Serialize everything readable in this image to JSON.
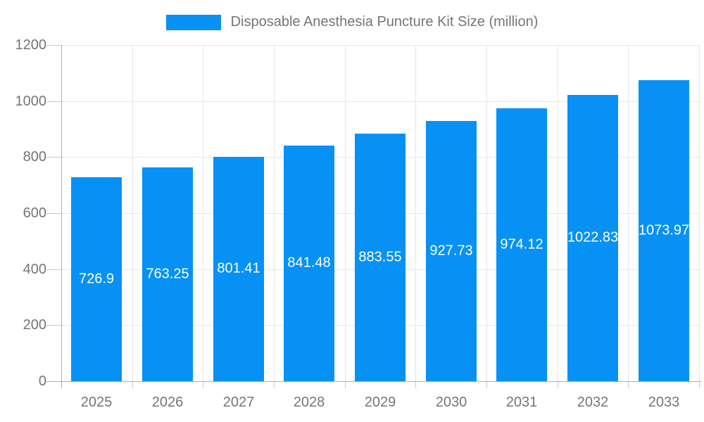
{
  "chart_data": {
    "type": "bar",
    "title": "Disposable Anesthesia Puncture Kit Size (million)",
    "categories": [
      "2025",
      "2026",
      "2027",
      "2028",
      "2029",
      "2030",
      "2031",
      "2032",
      "2033"
    ],
    "series": [
      {
        "name": "Disposable Anesthesia Puncture Kit Size (million)",
        "values": [
          726.9,
          763.25,
          801.41,
          841.48,
          883.55,
          927.73,
          974.12,
          1022.83,
          1073.97
        ]
      }
    ],
    "value_labels": [
      "726.9",
      "763.25",
      "801.41",
      "841.48",
      "883.55",
      "927.73",
      "974.12",
      "1022.83",
      "1073.97"
    ],
    "xlabel": "",
    "ylabel": "",
    "ylim": [
      0,
      1200
    ],
    "yticks": [
      "0",
      "200",
      "400",
      "600",
      "800",
      "1000",
      "1200"
    ],
    "grid": "on",
    "legend_position": "top-center",
    "value_label_position": "inside-center"
  },
  "colors": {
    "bar": "#0791f5",
    "axis": "#b0b0b0",
    "grid": "#e6e6e6",
    "tick": "#c9c9c9",
    "text": "#757575",
    "value_text": "#ffffff",
    "background": "#ffffff"
  }
}
